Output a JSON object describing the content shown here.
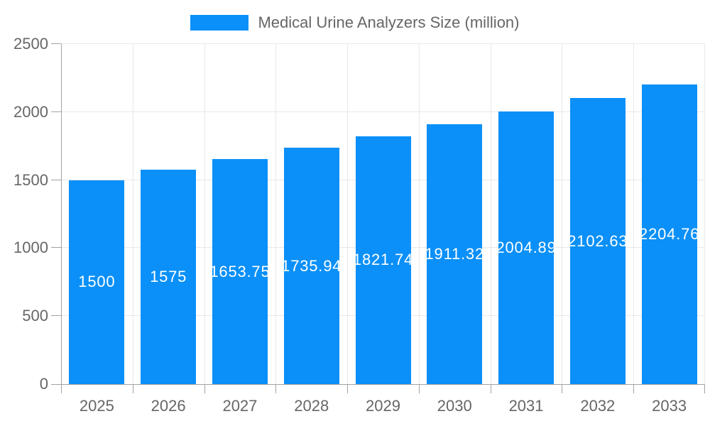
{
  "legend": {
    "label": "Medical Urine Analyzers Size (million)",
    "position": "top"
  },
  "colors": {
    "bar": "#0a90f8",
    "grid": "#e8e8e8",
    "axis": "#a3a3a3",
    "tick_text": "#666666",
    "bar_label_text": "#ffffff",
    "background": "#ffffff"
  },
  "chart_data": {
    "type": "bar",
    "title": "Medical Urine Analyzers Size (million)",
    "categories": [
      "2025",
      "2026",
      "2027",
      "2028",
      "2029",
      "2030",
      "2031",
      "2032",
      "2033"
    ],
    "series": [
      {
        "name": "Medical Urine Analyzers Size (million)",
        "values": [
          1500,
          1575,
          1653.75,
          1735.94,
          1821.74,
          1911.32,
          2004.89,
          2102.63,
          2204.76
        ]
      }
    ],
    "value_labels": [
      "1500",
      "1575",
      "1653.75",
      "1735.94",
      "1821.74",
      "1911.32",
      "2004.89",
      "2102.63",
      "2204.76"
    ],
    "xlabel": "",
    "ylabel": "",
    "ylim": [
      0,
      2500
    ],
    "yticks": [
      0,
      500,
      1000,
      1500,
      2000,
      2500
    ],
    "grid": true,
    "legend_position": "top",
    "bar_label_placement": "center-inside"
  }
}
